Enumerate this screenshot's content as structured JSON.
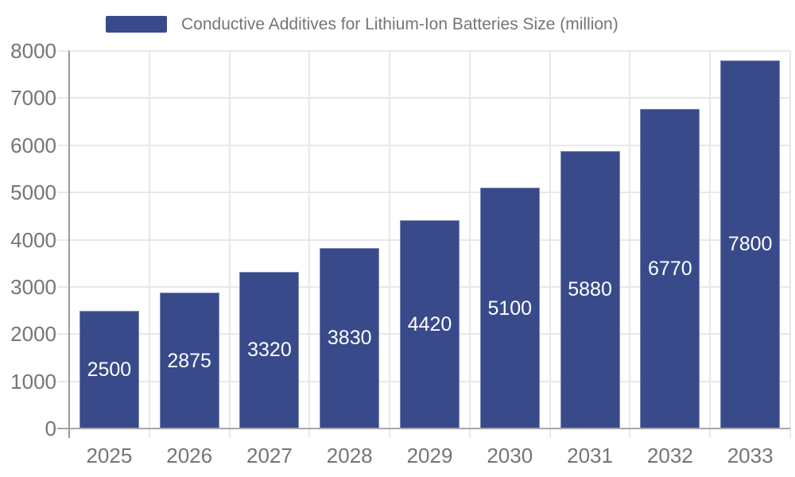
{
  "legend": {
    "label": "Conductive Additives for Lithium-Ion Batteries Size (million)"
  },
  "colors": {
    "bar": "#394A8B",
    "value_label": "#FFFFFF",
    "tick_text": "#757575",
    "gridline": "#E8E8E8",
    "axis_line": "#9A9A9A"
  },
  "chart_data": {
    "type": "bar",
    "title": "Conductive Additives for Lithium-Ion Batteries Size (million)",
    "categories": [
      "2025",
      "2026",
      "2027",
      "2028",
      "2029",
      "2030",
      "2031",
      "2032",
      "2033"
    ],
    "values": [
      2500,
      2875,
      3320,
      3830,
      4420,
      5100,
      5880,
      6770,
      7800
    ],
    "value_labels": [
      "2500",
      "2875",
      "3320",
      "3830",
      "4420",
      "5100",
      "5880",
      "6770",
      "7800"
    ],
    "xlabel": "",
    "ylabel": "",
    "ylim": [
      0,
      8000
    ],
    "yticks": [
      0,
      1000,
      2000,
      3000,
      4000,
      5000,
      6000,
      7000,
      8000
    ],
    "yticklabels": [
      "0",
      "1000",
      "2000",
      "3000",
      "4000",
      "5000",
      "6000",
      "7000",
      "8000"
    ],
    "grid": true,
    "legend_position": "top",
    "bar_labels_inside": true
  }
}
